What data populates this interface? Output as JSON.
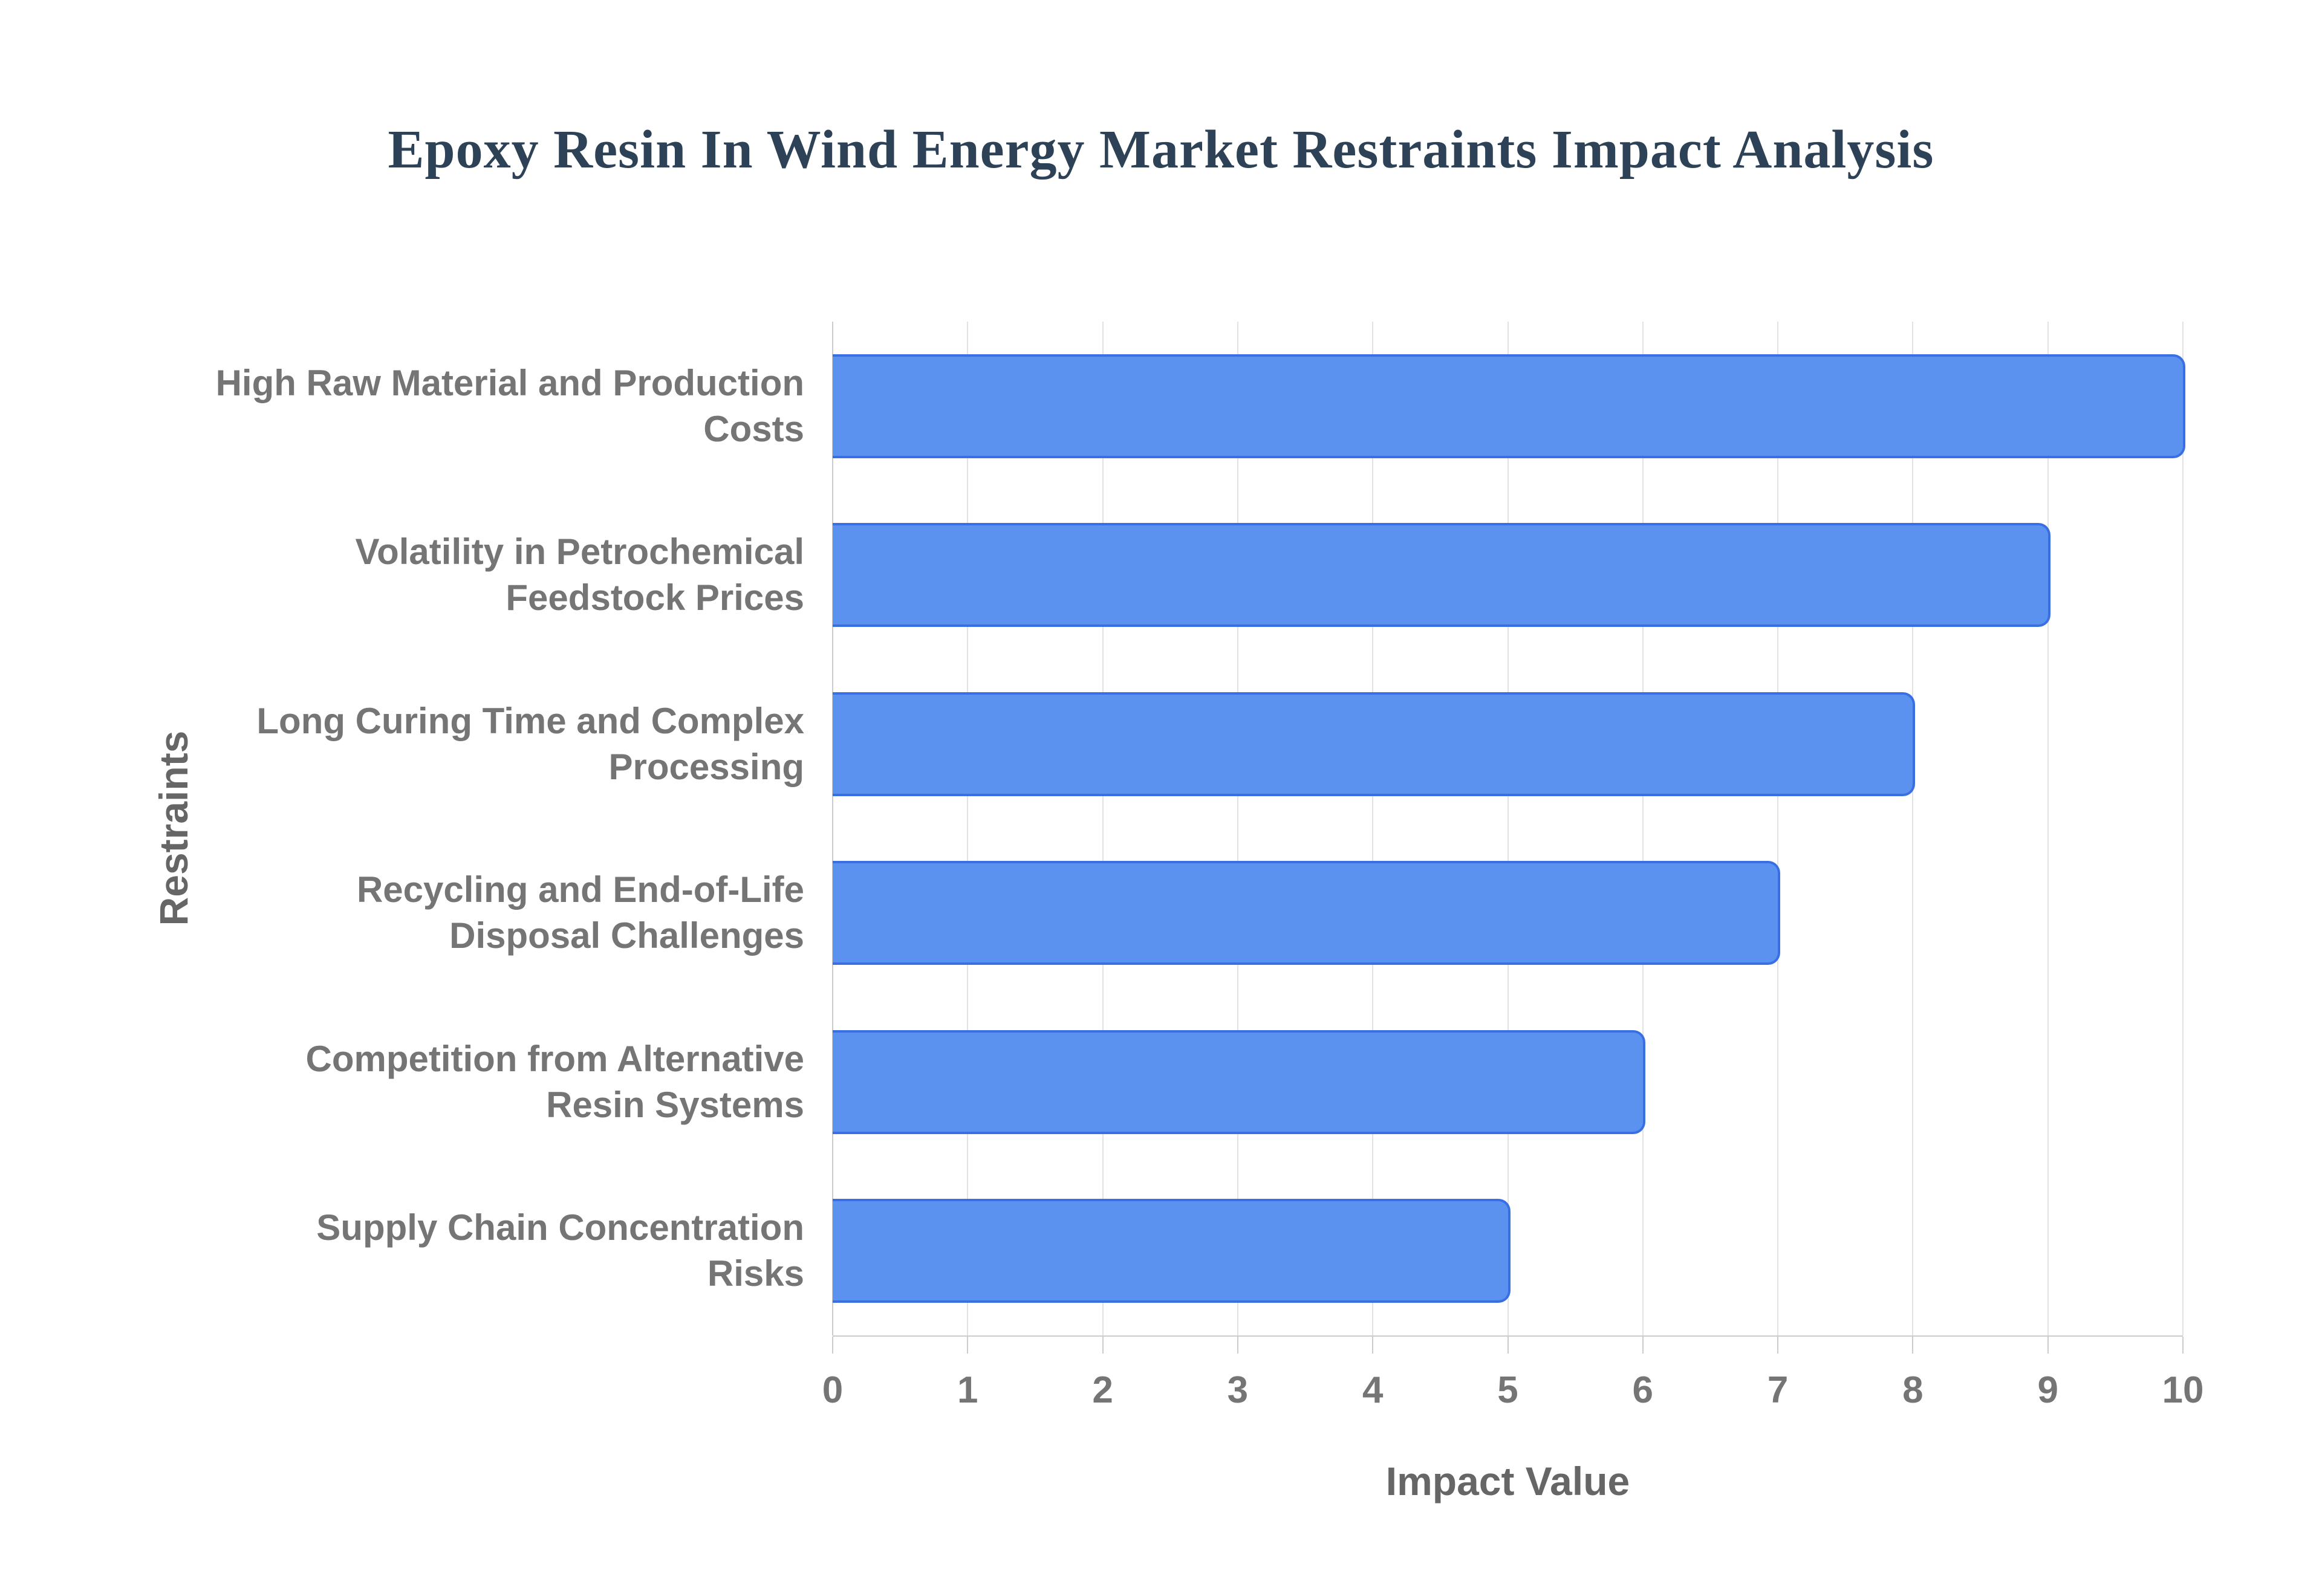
{
  "title": {
    "text": "Epoxy Resin In Wind Energy Market Restraints Impact Analysis",
    "color": "#2e4257"
  },
  "chart_data": {
    "type": "bar",
    "orientation": "horizontal",
    "title": "Epoxy Resin In Wind Energy Market Restraints Impact Analysis",
    "xlabel": "Impact Value",
    "ylabel": "Restraints",
    "categories": [
      "High Raw Material and Production Costs",
      "Volatility in Petrochemical Feedstock Prices",
      "Long Curing Time and Complex Processing",
      "Recycling and End-of-Life Disposal Challenges",
      "Competition from Alternative Resin Systems",
      "Supply Chain Concentration Risks"
    ],
    "values": [
      10,
      9,
      8,
      7,
      6,
      5
    ],
    "xlim": [
      0,
      10
    ],
    "xticks": [
      0,
      1,
      2,
      3,
      4,
      5,
      6,
      7,
      8,
      9,
      10
    ],
    "grid": true,
    "legend": "none",
    "colors": {
      "bar_fill": "#5b92f0",
      "bar_border": "#3a6fe4",
      "gridline": "#e2e2e2",
      "axis_line": "#cccccc",
      "tick_label": "#757575",
      "axis_title": "#666666"
    }
  }
}
